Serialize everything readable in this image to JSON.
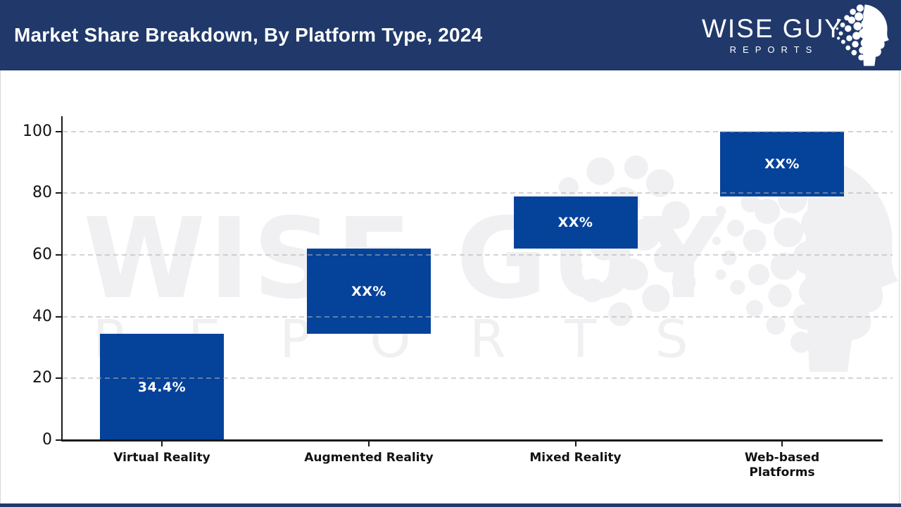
{
  "header": {
    "title": "Market Share Breakdown, By Platform Type, 2024",
    "logo": {
      "wordmark": "WISE GUY",
      "subtitle": "REPORTS"
    }
  },
  "watermark": {
    "wordmark": "WISE GUY",
    "subtitle": "R E P O R T S"
  },
  "chart_data": {
    "type": "bar",
    "subtype": "waterfall",
    "title": "Market Share Breakdown, By Platform Type, 2024",
    "categories": [
      "Virtual Reality",
      "Augmented Reality",
      "Mixed Reality",
      "Web-based\nPlatforms"
    ],
    "segments": [
      {
        "category": "Virtual Reality",
        "start": 0,
        "end": 34.4,
        "label": "34.4%"
      },
      {
        "category": "Augmented Reality",
        "start": 34.4,
        "end": 62,
        "label": "XX%"
      },
      {
        "category": "Mixed Reality",
        "start": 62,
        "end": 79,
        "label": "XX%"
      },
      {
        "category": "Web-based Platforms",
        "start": 79,
        "end": 100,
        "label": "XX%"
      }
    ],
    "yticks": [
      0,
      20,
      40,
      60,
      80,
      100
    ],
    "ylim": [
      0,
      105
    ],
    "xlabel": "",
    "ylabel": "",
    "legend": "none",
    "grid": "horizontal-dashed",
    "bar_color": "#05429A"
  },
  "colors": {
    "header_bg": "#20396A",
    "bar": "#05429A",
    "axis": "#1a1a1a",
    "grid_dash": "#d8d8d8",
    "watermark": "#f0f0f2",
    "tick_text": "#111111",
    "bar_label_text": "#ffffff"
  }
}
